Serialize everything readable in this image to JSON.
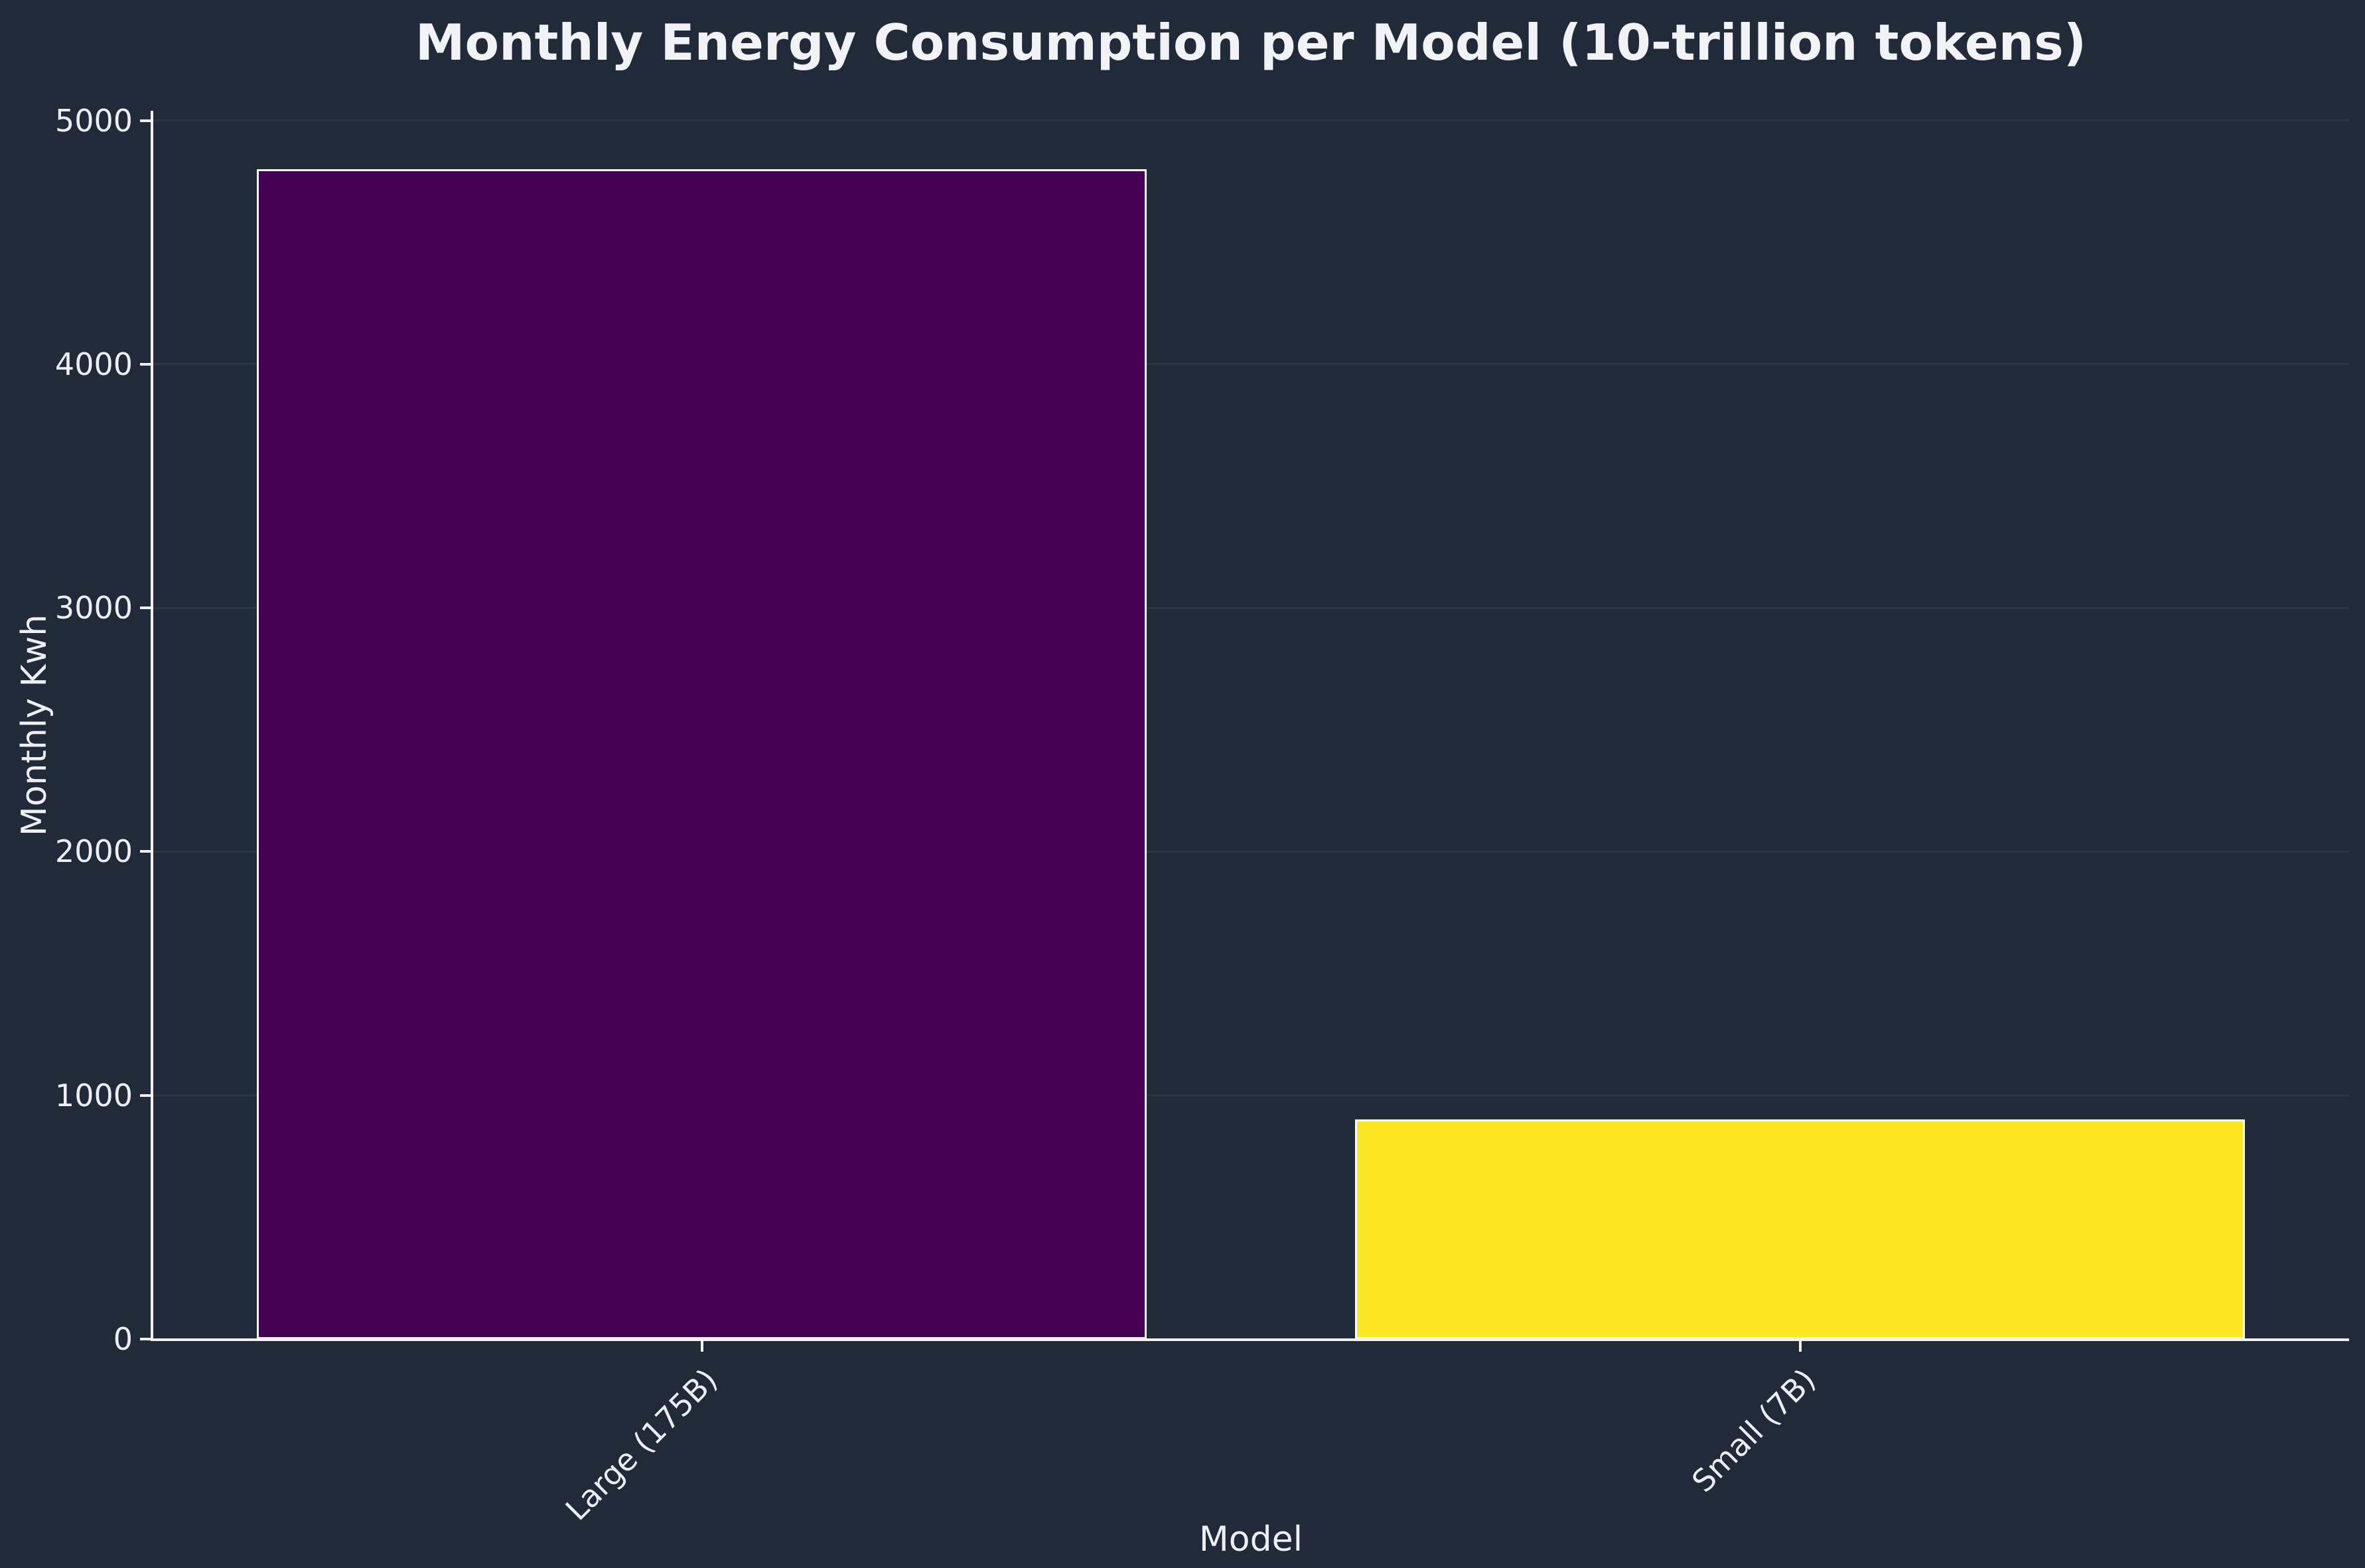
{
  "chart_data": {
    "type": "bar",
    "title": "Monthly Energy Consumption per Model (10-trillion tokens)",
    "xlabel": "Model",
    "ylabel": "Monthly Kwh",
    "categories": [
      "Large (175B)",
      "Small (7B)"
    ],
    "values": [
      4800,
      900
    ],
    "yticks": [
      0,
      1000,
      2000,
      3000,
      4000,
      5000
    ],
    "ylim": [
      0,
      5040
    ],
    "bar_width_fraction": 0.81,
    "grid": "horizontal-only",
    "legend_position": "none",
    "x_tick_rotation_deg": 45,
    "bar_colors": [
      "#440154",
      "#FDE725"
    ],
    "bar_edge_color": "#FFFFFF"
  },
  "style": {
    "background_color": "#212A38",
    "gridline_color": "#2B3544",
    "spine_color": "#F2F2F2",
    "text_color": "#EDEFF3",
    "title_color": "#F1F3F7"
  }
}
